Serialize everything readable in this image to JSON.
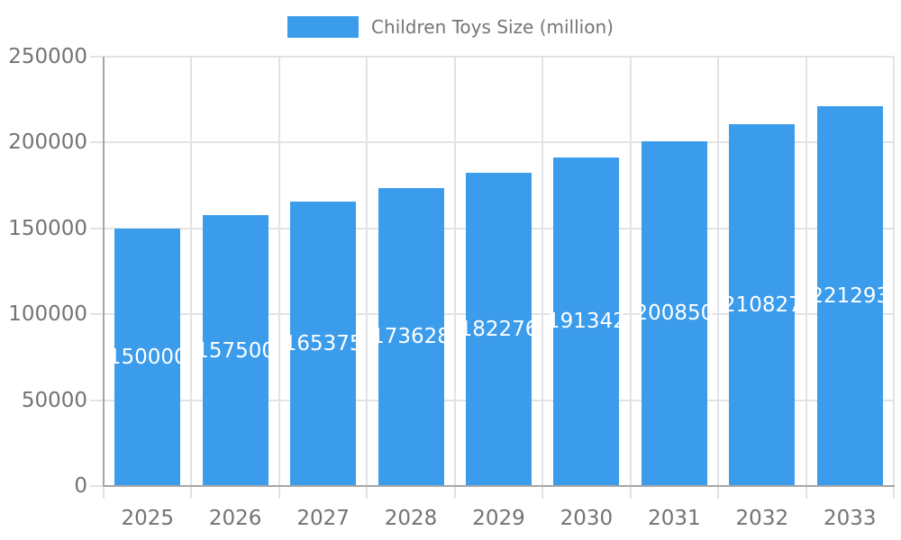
{
  "chart_data": {
    "type": "bar",
    "title": "Children Toys Size (million)",
    "legend": [
      "Children Toys Size (million)"
    ],
    "legend_position": "top-center",
    "categories": [
      "2025",
      "2026",
      "2027",
      "2028",
      "2029",
      "2030",
      "2031",
      "2032",
      "2033"
    ],
    "series": [
      {
        "name": "Children Toys Size (million)",
        "values": [
          150000,
          157500,
          165375,
          173628,
          182276,
          191342,
          200850,
          210827,
          221293
        ]
      }
    ],
    "xlabel": "",
    "ylabel": "",
    "ylim": [
      0,
      250000
    ],
    "ytick_step": 50000,
    "yticks": [
      0,
      50000,
      100000,
      150000,
      200000,
      250000
    ],
    "grid": true,
    "bar_labels_shown": true,
    "bar_label_position": "inside-center"
  },
  "colors": {
    "bar": "#3b9cec",
    "bar_label": "#ffffff",
    "axis": "#a6a6a6",
    "gridline": "#e3e3e3",
    "tick": "#e3e3e3",
    "tick_label": "#737373",
    "legend_text": "#757575",
    "background": "#ffffff"
  }
}
